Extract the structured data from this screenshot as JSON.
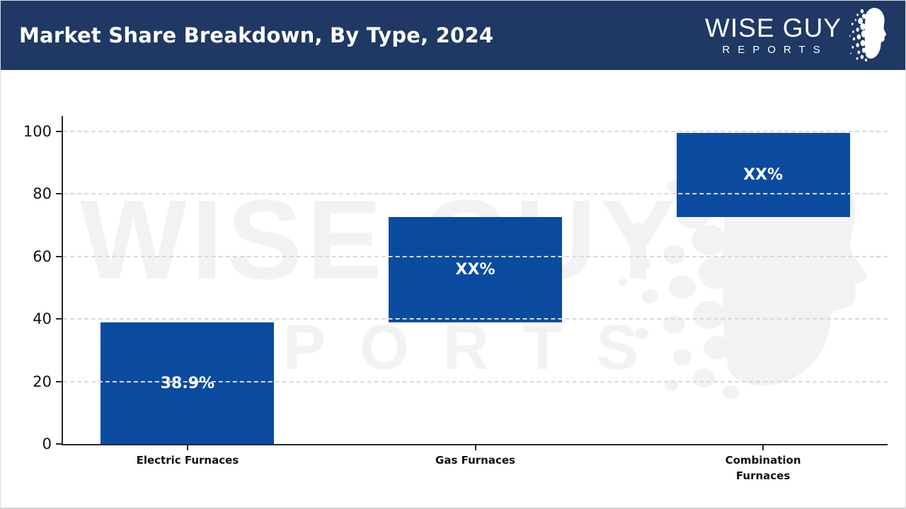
{
  "header": {
    "title": "Market Share Breakdown, By Type, 2024",
    "bg_color": "#1F3864",
    "text_color": "#FFFFFF",
    "logo": {
      "name": "WISE GUY",
      "subtext": "REPORTS",
      "icon": "dotted-face-profile-icon"
    }
  },
  "watermark": {
    "line1": "WISE GUY",
    "line2": "REPORTS",
    "icon": "dotted-face-profile-icon",
    "color": "#F2F2F2"
  },
  "chart_data": {
    "type": "bar",
    "subtype": "floating-waterfall",
    "title": "Market Share Breakdown, By Type, 2024",
    "categories": [
      "Electric Furnaces",
      "Gas Furnaces",
      "Combination Furnaces"
    ],
    "series": [
      {
        "name": "Market Share",
        "segments": [
          {
            "category": "Electric Furnaces",
            "start": 0,
            "end": 38.9,
            "label": "38.9%"
          },
          {
            "category": "Gas Furnaces",
            "start": 38.9,
            "end": 72.6,
            "label": "XX%"
          },
          {
            "category": "Combination Furnaces",
            "start": 72.6,
            "end": 99.5,
            "label": "XX%"
          }
        ]
      }
    ],
    "xlabel": "",
    "ylabel": "",
    "ylim": [
      0,
      100
    ],
    "yticks": [
      0,
      20,
      40,
      60,
      80,
      100
    ],
    "grid": "horizontal-dashed",
    "grid_over_bars": true,
    "legend": "none",
    "bar_color": "#0B4B9F",
    "bar_label_color": "#FFFFFF",
    "axis_color": "#262626",
    "grid_color": "#D9D9D9",
    "tick_label_color": "#111111"
  }
}
